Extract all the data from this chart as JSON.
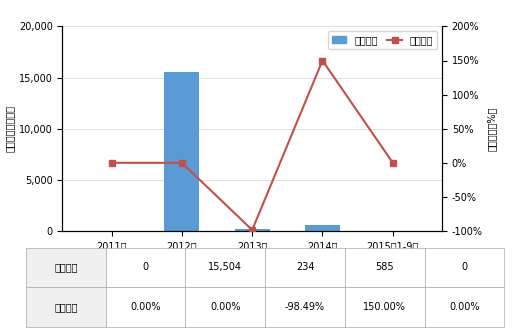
{
  "categories": [
    "2011年",
    "2012年",
    "2013年",
    "2014年",
    "2015年1-9月"
  ],
  "bar_values": [
    0,
    15504,
    234,
    585,
    0
  ],
  "line_values": [
    0.0,
    0.0,
    -98.49,
    150.0,
    0.0
  ],
  "bar_color": "#5b9bd5",
  "line_color": "#c0504d",
  "left_ylim": [
    0,
    20000
  ],
  "left_yticks": [
    0,
    5000,
    10000,
    15000,
    20000
  ],
  "right_ylim": [
    -100,
    200
  ],
  "right_yticks": [
    -100,
    -50,
    0,
    50,
    100,
    150,
    200
  ],
  "left_ylabel": "出口金額（美元）",
  "right_ylabel": "同比增速（%）",
  "legend_bar": "出口金額",
  "legend_line": "同比增長",
  "table_row1_label": "出口金額",
  "table_row2_label": "同比增長",
  "table_row1_values": [
    "0",
    "15,504",
    "234",
    "585",
    "0"
  ],
  "table_row2_values": [
    "0.00%",
    "0.00%",
    "-98.49%",
    "150.00%",
    "0.00%"
  ],
  "background_color": "#ffffff",
  "grid_color": "#dddddd"
}
